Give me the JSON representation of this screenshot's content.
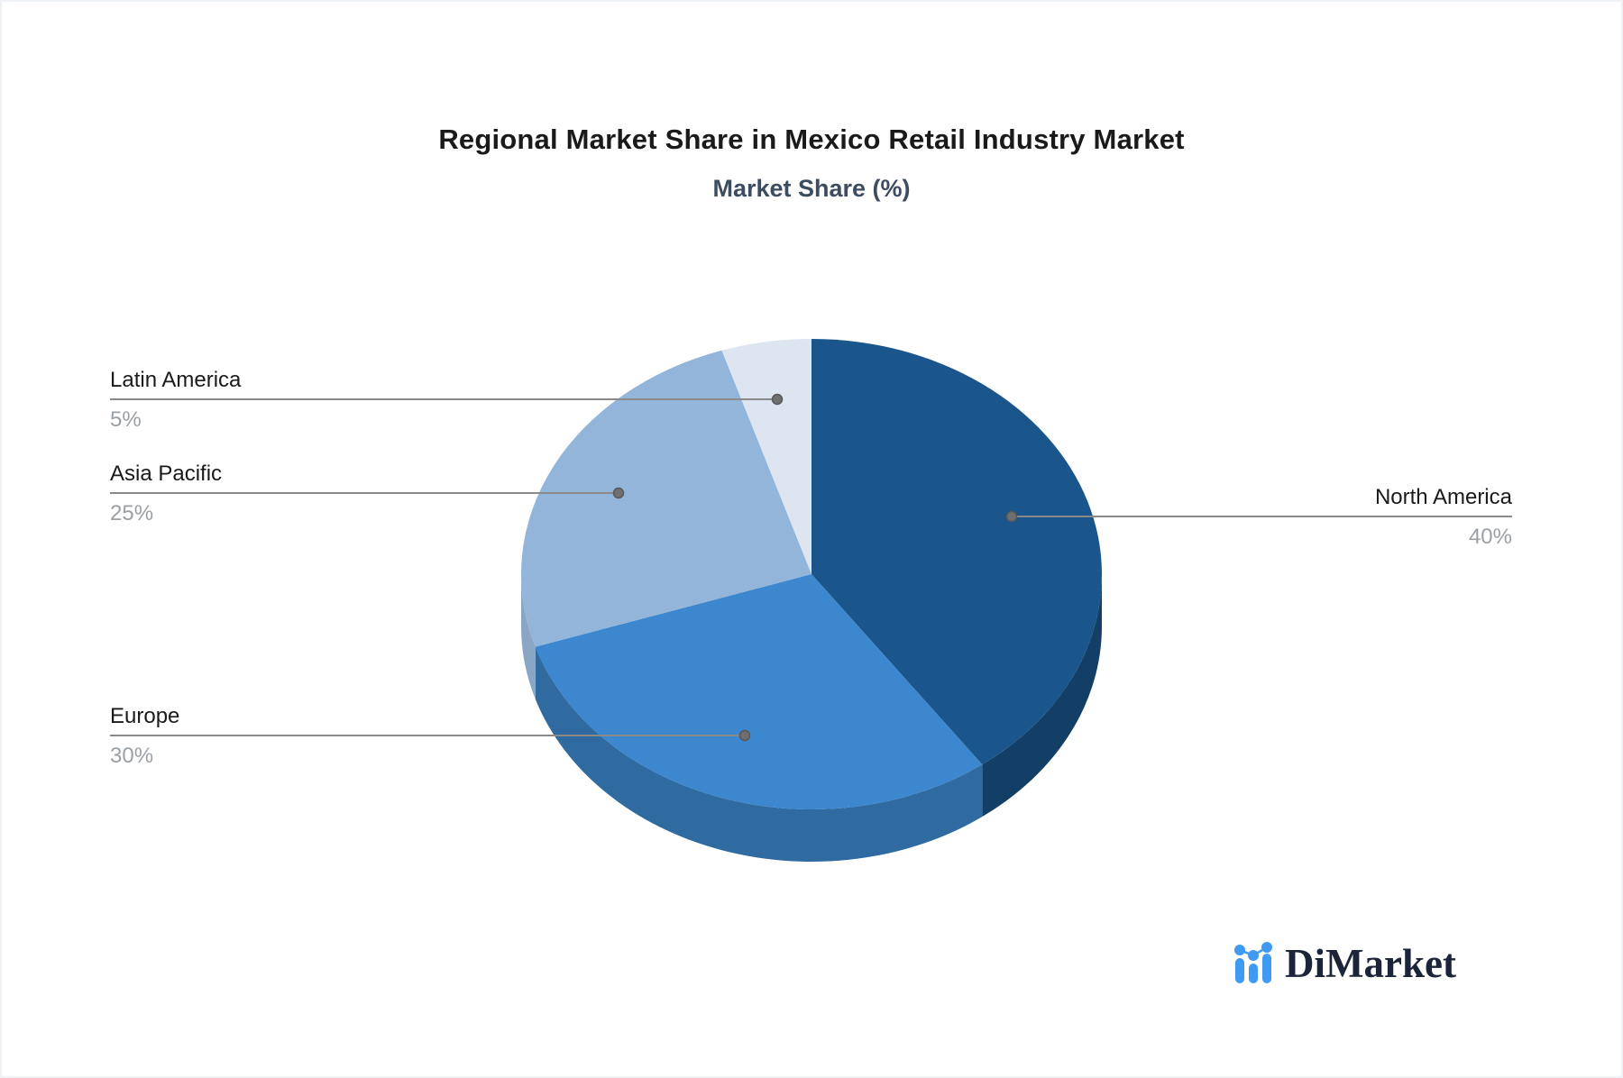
{
  "header": {
    "title": "Regional Market Share in Mexico Retail Industry Market",
    "subtitle": "Market Share (%)"
  },
  "chart_data": {
    "type": "pie",
    "style": "3d",
    "title": "Regional Market Share in Mexico Retail Industry Market",
    "subtitle": "Market Share (%)",
    "unit": "%",
    "direction": "clockwise",
    "start_angle_deg": 0,
    "legend_position": "callout-leader-lines",
    "series": [
      {
        "label": "North America",
        "value": 40,
        "display": "40%",
        "color": "#1a568c",
        "side_color": "#133f66"
      },
      {
        "label": "Europe",
        "value": 30,
        "display": "30%",
        "color": "#3c87cd",
        "side_color": "#2f6aa0"
      },
      {
        "label": "Asia Pacific",
        "value": 25,
        "display": "25%",
        "color": "#93b5da",
        "side_color": "#8aa6c5"
      },
      {
        "label": "Latin America",
        "value": 5,
        "display": "5%",
        "color": "#dde5f0",
        "side_color": "#c9d4e4"
      }
    ]
  },
  "callouts": {
    "latin_america": {
      "name": "Latin America",
      "value": "5%"
    },
    "asia_pacific": {
      "name": "Asia Pacific",
      "value": "25%"
    },
    "europe": {
      "name": "Europe",
      "value": "30%"
    },
    "north_america": {
      "name": "North America",
      "value": "40%"
    }
  },
  "brand": {
    "name": "DiMarket",
    "icon": "bar-chart-logo",
    "icon_color": "#3f9bf2",
    "text_color": "#1b2438"
  },
  "colors": {
    "title": "#1a1a1a",
    "subtitle": "#3d4d61",
    "label_text": "#1a1a1a",
    "value_text": "#9aa0a6",
    "leader_line": "#8a8a8a",
    "background": "#ffffff"
  }
}
